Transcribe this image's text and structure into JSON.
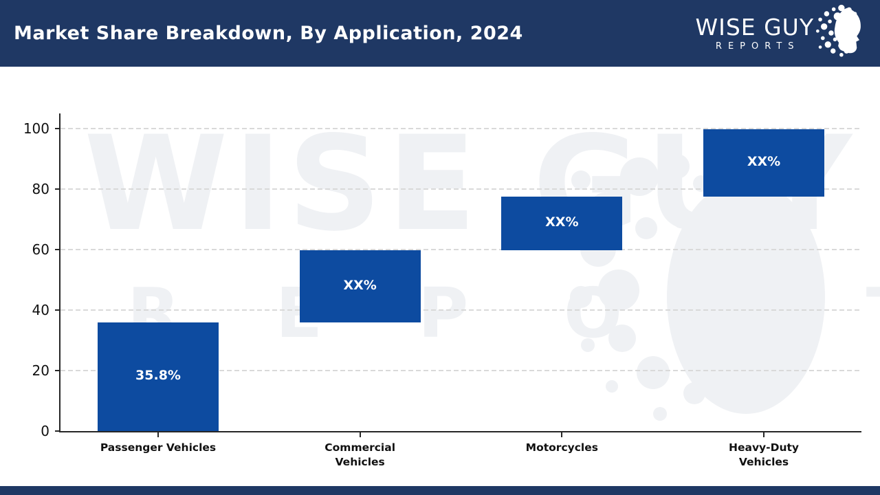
{
  "header": {
    "title": "Market Share Breakdown, By Application, 2024",
    "logo": {
      "wordmark": "WISE GUY",
      "subtitle": "REPORTS"
    }
  },
  "watermark": {
    "line1": "WISE GUY",
    "line2": "R E P O R T S"
  },
  "chart_data": {
    "type": "bar",
    "subtype": "floating-waterfall",
    "title": "Market Share Breakdown, By Application, 2024",
    "xlabel": "",
    "ylabel": "",
    "categories": [
      "Passenger Vehicles",
      "Commercial\nVehicles",
      "Motorcycles",
      "Heavy-Duty\nVehicles"
    ],
    "bars": [
      {
        "category": "Passenger Vehicles",
        "start": 0,
        "end": 35.8,
        "label": "35.8%"
      },
      {
        "category": "Commercial Vehicles",
        "start": 35.8,
        "end": 59.7,
        "label": "XX%"
      },
      {
        "category": "Motorcycles",
        "start": 59.7,
        "end": 77.5,
        "label": "XX%"
      },
      {
        "category": "Heavy-Duty Vehicles",
        "start": 77.5,
        "end": 99.8,
        "label": "XX%"
      }
    ],
    "yticks": [
      0,
      20,
      40,
      60,
      80,
      100
    ],
    "ylim": [
      0,
      105
    ],
    "grid": "horizontal-dashed",
    "legend": "none",
    "bar_color": "#0d4ba0",
    "bar_label_color": "#ffffff",
    "header_color": "#1f3864"
  }
}
